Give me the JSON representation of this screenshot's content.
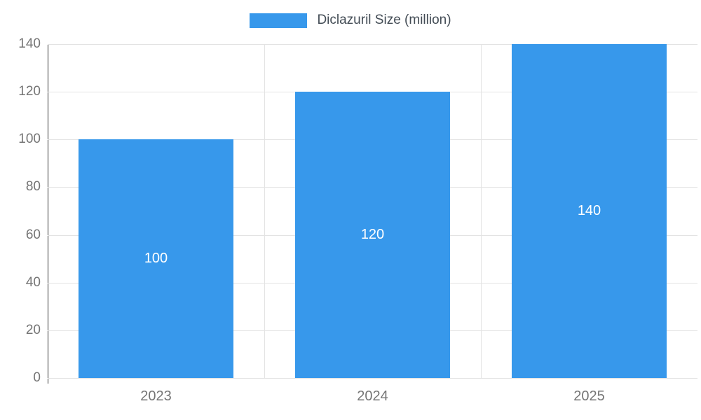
{
  "legend": {
    "label": "Diclazuril Size (million)"
  },
  "chart_data": {
    "type": "bar",
    "title": "",
    "categories": [
      "2023",
      "2024",
      "2025"
    ],
    "series": [
      {
        "name": "Diclazuril Size (million)",
        "values": [
          100,
          120,
          140
        ]
      }
    ],
    "value_labels": [
      "100",
      "120",
      "140"
    ],
    "xlabel": "",
    "ylabel": "",
    "ylim": [
      0,
      140
    ],
    "yticks": [
      0,
      20,
      40,
      60,
      80,
      100,
      120,
      140
    ],
    "grid": true,
    "legend_position": "top",
    "bar_color": "#3798eb",
    "value_label_color": "#ffffff",
    "axis_text_color": "#757575",
    "gridline_color": "#e3e3e3"
  }
}
